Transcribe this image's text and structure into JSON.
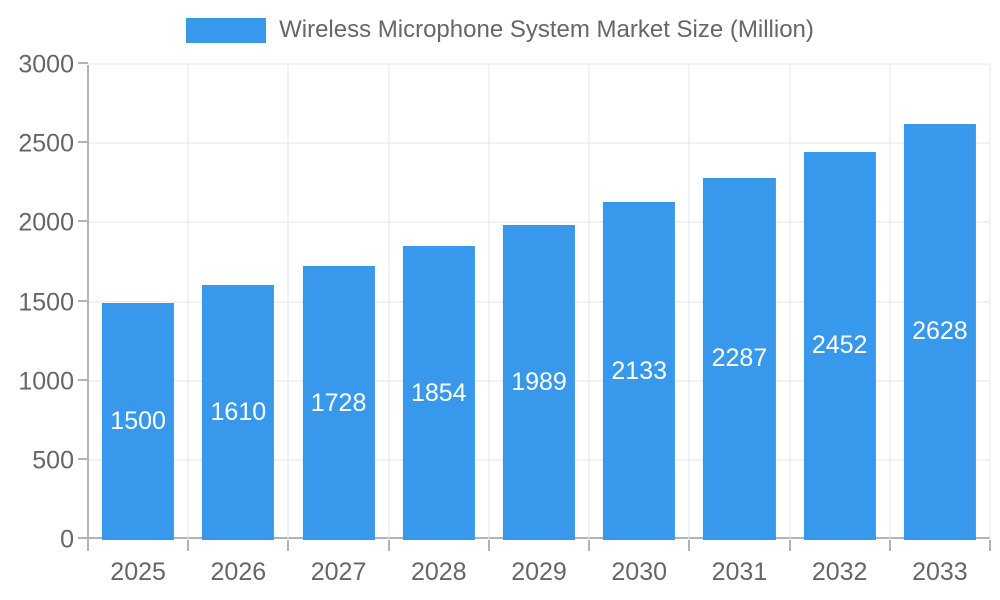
{
  "chart_data": {
    "type": "bar",
    "title": "Wireless Microphone System Market Size (Million)",
    "categories": [
      "2025",
      "2026",
      "2027",
      "2028",
      "2029",
      "2030",
      "2031",
      "2032",
      "2033"
    ],
    "values": [
      1500,
      1610,
      1728,
      1854,
      1989,
      2133,
      2287,
      2452,
      2628
    ],
    "xlabel": "",
    "ylabel": "",
    "ylim": [
      0,
      3000
    ],
    "yticks": [
      0,
      500,
      1000,
      1500,
      2000,
      2500,
      3000
    ],
    "legend_position": "top",
    "grid": true,
    "bar_width_fraction": 0.72,
    "colors": {
      "bar": "#3899EC",
      "bar_label": "#FFFFFF",
      "axis_text": "#666666",
      "grid_light": "#E5E5E5",
      "grid_dark": "#B3B3B3",
      "background": "#FFFFFF"
    }
  }
}
